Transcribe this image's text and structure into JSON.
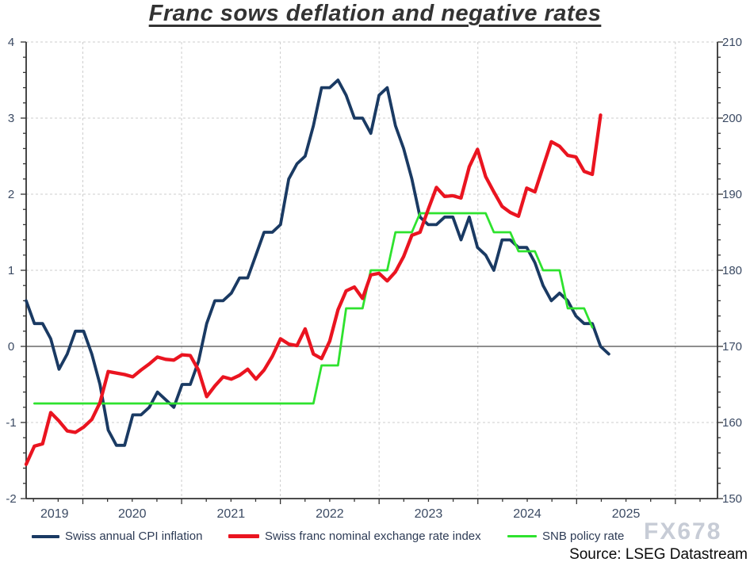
{
  "title": "Franc sows deflation and negative rates",
  "watermark": "FX678",
  "source": "Source: LSEG Datastream",
  "chart_data": {
    "type": "line",
    "frequency": "monthly",
    "x_start_month": "2019-06",
    "x_end_month": "2025-05",
    "x_year_labels": [
      "2019",
      "2020",
      "2021",
      "2022",
      "2023",
      "2024",
      "2025"
    ],
    "left_axis": {
      "min": -2,
      "max": 4,
      "ticks": [
        4,
        3,
        2,
        1,
        0,
        -1,
        -2
      ],
      "zero_line": 0
    },
    "right_axis": {
      "min": 150,
      "max": 210,
      "ticks": [
        210,
        200,
        190,
        180,
        170,
        160,
        150
      ]
    },
    "grid": "dashed",
    "legend_position": "bottom",
    "colors": {
      "cpi": "#1a3a63",
      "franc_index": "#ea1420",
      "policy_rate": "#2ee22e"
    },
    "series": [
      {
        "name": "Swiss annual CPI inflation",
        "axis": "left",
        "color": "#1a3a63",
        "start_offset": 0,
        "values": [
          0.6,
          0.3,
          0.3,
          0.1,
          -0.3,
          -0.1,
          0.2,
          0.2,
          -0.1,
          -0.5,
          -1.1,
          -1.3,
          -1.3,
          -0.9,
          -0.9,
          -0.8,
          -0.6,
          -0.7,
          -0.8,
          -0.5,
          -0.5,
          -0.2,
          0.3,
          0.6,
          0.6,
          0.7,
          0.9,
          0.9,
          1.2,
          1.5,
          1.5,
          1.6,
          2.2,
          2.4,
          2.5,
          2.9,
          3.4,
          3.4,
          3.5,
          3.3,
          3.0,
          3.0,
          2.8,
          3.3,
          3.4,
          2.9,
          2.6,
          2.2,
          1.7,
          1.6,
          1.6,
          1.7,
          1.7,
          1.4,
          1.7,
          1.3,
          1.2,
          1.0,
          1.4,
          1.4,
          1.3,
          1.3,
          1.1,
          0.8,
          0.6,
          0.7,
          0.6,
          0.4,
          0.3,
          0.3,
          0.0,
          -0.1
        ]
      },
      {
        "name": "Swiss franc nominal exchange rate index",
        "axis": "right",
        "color": "#ea1420",
        "start_offset": 0,
        "values": [
          154.5,
          156.9,
          157.2,
          161.3,
          160.2,
          158.9,
          158.7,
          159.4,
          160.4,
          162.6,
          166.7,
          166.5,
          166.3,
          166.0,
          166.9,
          167.7,
          168.6,
          168.3,
          168.2,
          168.9,
          168.8,
          166.9,
          163.4,
          164.8,
          166.0,
          165.7,
          166.2,
          167.0,
          165.7,
          166.9,
          168.7,
          171.0,
          170.3,
          170.1,
          172.3,
          169.0,
          168.4,
          170.7,
          174.8,
          177.3,
          177.8,
          176.3,
          179.4,
          179.6,
          178.6,
          179.8,
          181.8,
          184.6,
          185.0,
          188.0,
          190.9,
          189.7,
          189.8,
          189.5,
          193.6,
          195.9,
          192.3,
          190.3,
          188.4,
          187.6,
          187.1,
          190.8,
          190.3,
          193.6,
          196.9,
          196.3,
          195.1,
          194.9,
          193.0,
          192.6,
          200.4
        ]
      },
      {
        "name": "SNB policy rate",
        "axis": "left",
        "color": "#2ee22e",
        "start_offset": 1,
        "values": [
          -0.75,
          -0.75,
          -0.75,
          -0.75,
          -0.75,
          -0.75,
          -0.75,
          -0.75,
          -0.75,
          -0.75,
          -0.75,
          -0.75,
          -0.75,
          -0.75,
          -0.75,
          -0.75,
          -0.75,
          -0.75,
          -0.75,
          -0.75,
          -0.75,
          -0.75,
          -0.75,
          -0.75,
          -0.75,
          -0.75,
          -0.75,
          -0.75,
          -0.75,
          -0.75,
          -0.75,
          -0.75,
          -0.75,
          -0.75,
          -0.75,
          -0.25,
          -0.25,
          -0.25,
          0.5,
          0.5,
          0.5,
          1.0,
          1.0,
          1.0,
          1.5,
          1.5,
          1.5,
          1.75,
          1.75,
          1.75,
          1.75,
          1.75,
          1.75,
          1.75,
          1.75,
          1.75,
          1.5,
          1.5,
          1.5,
          1.25,
          1.25,
          1.25,
          1.0,
          1.0,
          1.0,
          0.5,
          0.5,
          0.5,
          0.25
        ]
      }
    ]
  }
}
